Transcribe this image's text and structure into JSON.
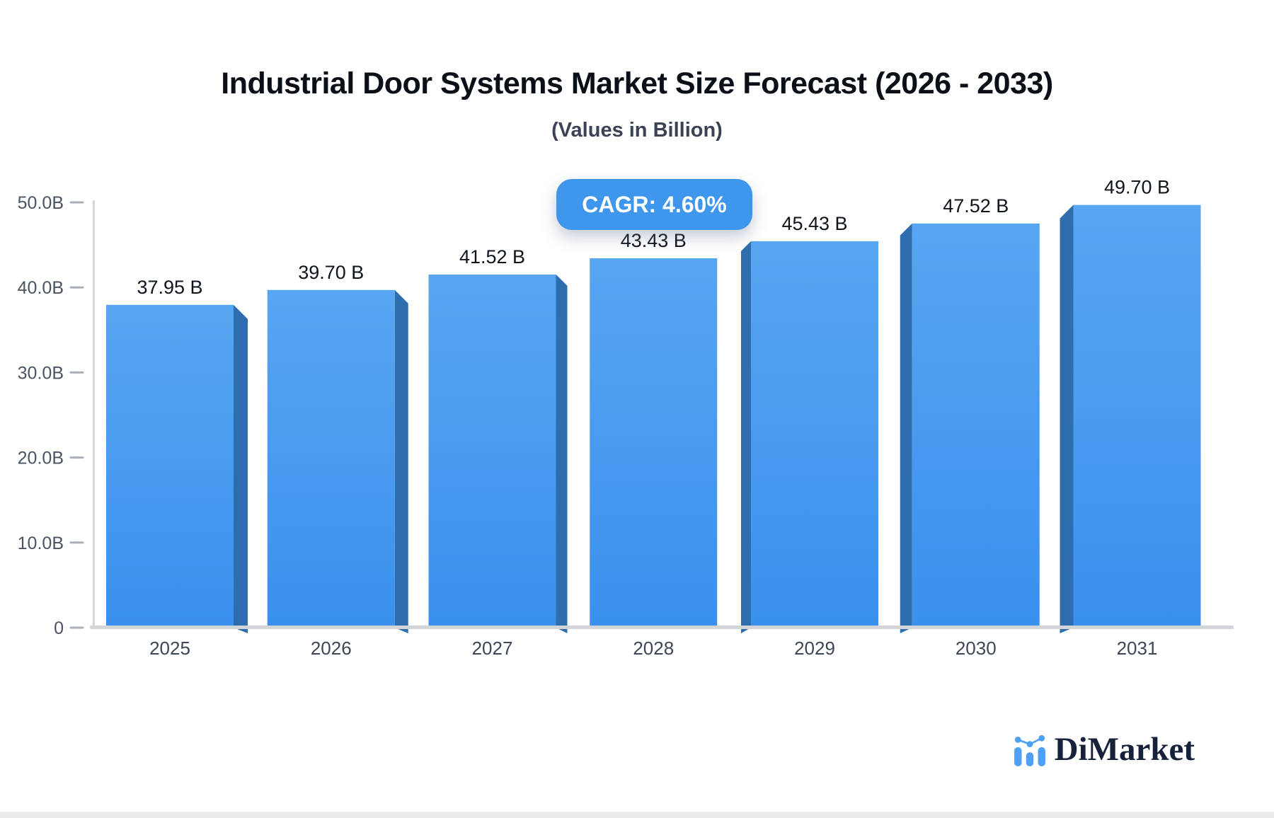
{
  "header": {
    "title": "Industrial Door Systems Market Size Forecast (2026 - 2033)",
    "subtitle": "(Values in Billion)"
  },
  "badge": {
    "label": "CAGR: 4.60%",
    "color": "#3e97ed"
  },
  "chart_data": {
    "type": "bar",
    "title": "Industrial Door Systems Market Size Forecast (2026 - 2033)",
    "subtitle": "(Values in Billion)",
    "categories": [
      "2025",
      "2026",
      "2027",
      "2028",
      "2029",
      "2030",
      "2031"
    ],
    "values": [
      37.95,
      39.7,
      41.52,
      43.43,
      45.43,
      47.52,
      49.7
    ],
    "value_labels": [
      "37.95 B",
      "39.70 B",
      "41.52 B",
      "43.43 B",
      "45.43 B",
      "47.52 B",
      "49.70 B"
    ],
    "annotation": "CAGR: 4.60%",
    "xlabel": "",
    "ylabel": "",
    "ylim": [
      0,
      50
    ],
    "ytick_values": [
      0,
      10,
      20,
      30,
      40,
      50
    ],
    "ytick_labels": [
      "0",
      "10.0B",
      "20.0B",
      "30.0B",
      "40.0B",
      "50.0B"
    ],
    "grid": "off",
    "legend": "none",
    "style": "3d-perspective-bars",
    "colors": {
      "bar_face_top": "#58a6f1",
      "bar_face_bottom": "#3a90ee",
      "bar_side": "#2e6dae",
      "axis_line": "#d6d7da",
      "baseline": "#d2d4d8",
      "tick_dash": "#aab0ba",
      "ytick_label": "#4b5463",
      "xtick_label": "#3e4756",
      "value_label": "#0f141d"
    }
  },
  "branding": {
    "name": "DiMarket"
  }
}
